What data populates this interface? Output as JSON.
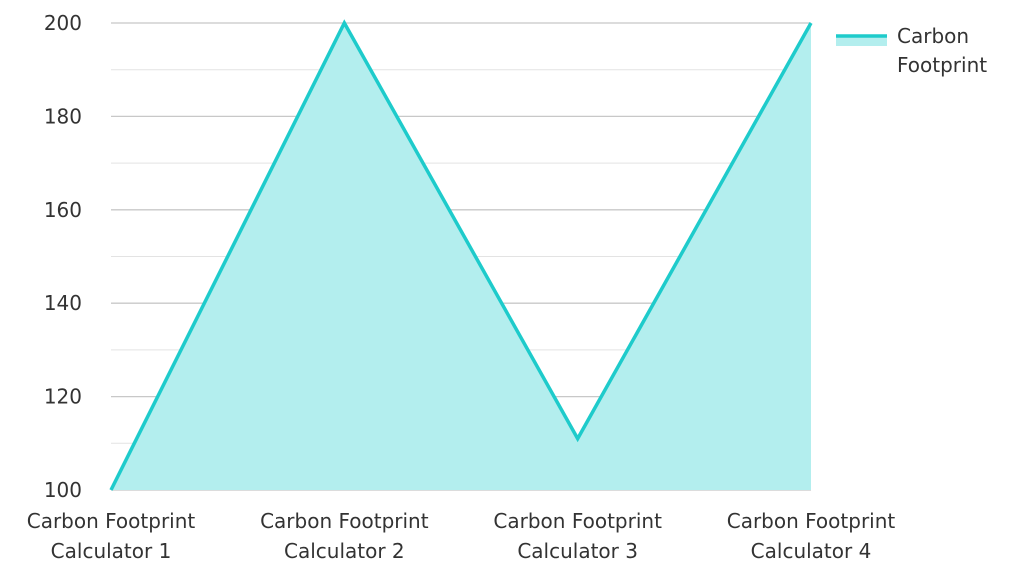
{
  "chart_data": {
    "type": "area",
    "title": "",
    "xlabel": "",
    "ylabel": "",
    "categories": [
      [
        "Carbon Footprint",
        "Calculator 1"
      ],
      [
        "Carbon Footprint",
        "Calculator 2"
      ],
      [
        "Carbon Footprint",
        "Calculator 3"
      ],
      [
        "Carbon Footprint",
        "Calculator 4"
      ]
    ],
    "series": [
      {
        "name": "Carbon Footprint",
        "values": [
          100,
          200,
          111,
          200
        ],
        "line_color": "#1ecbcb",
        "fill_color": "#b3eeee"
      }
    ],
    "ylim": [
      100,
      200
    ],
    "yticks": [
      100,
      120,
      140,
      160,
      180,
      200
    ],
    "grid": true,
    "legend_position": "top-right",
    "legend_labels": [
      "Carbon",
      "Footprint"
    ]
  },
  "colors": {
    "grid_major": "#c8c8c8",
    "grid_minor": "#e3e3e3",
    "text": "#333333"
  }
}
